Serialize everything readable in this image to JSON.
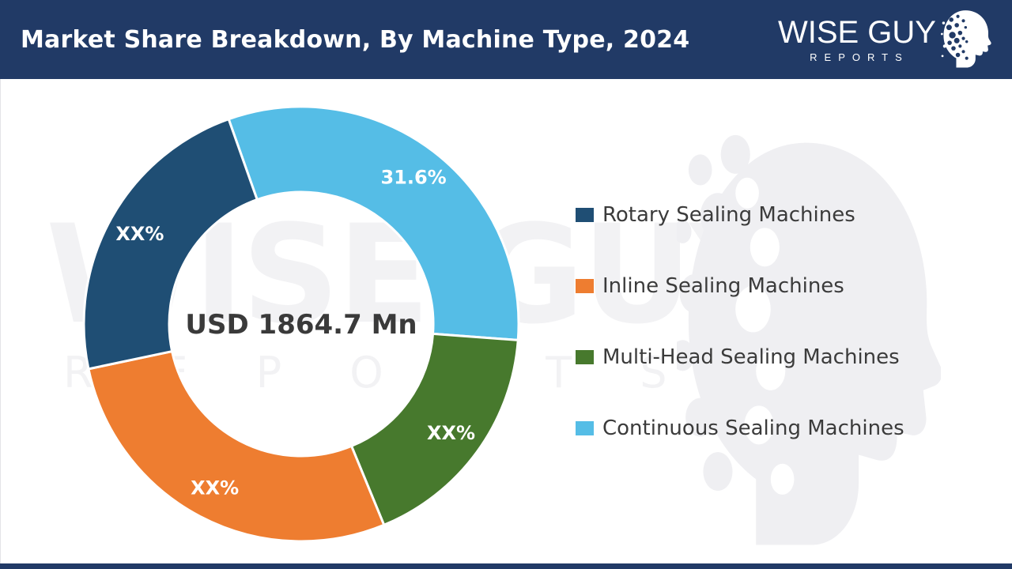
{
  "header": {
    "title": "Market Share Breakdown, By Machine Type, 2024",
    "logo": {
      "line1": "WISE GUY",
      "line2": "REPORTS"
    }
  },
  "watermark": {
    "line1": "WISE GUY",
    "line2": "REPORTS"
  },
  "chart_data": {
    "type": "pie",
    "subtype": "donut",
    "title": "Market Share Breakdown, By Machine Type, 2024",
    "center_label": "USD 1864.7 Mn",
    "start_angle_deg": -19.5,
    "direction": "clockwise",
    "legend_position": "right",
    "segments": [
      {
        "name": "Continuous Sealing Machines",
        "value_pct": 31.6,
        "label": "31.6%",
        "color": "#55BDE6"
      },
      {
        "name": "Multi-Head Sealing Machines",
        "value_pct": 17.6,
        "label": "XX%",
        "color": "#47792D"
      },
      {
        "name": "Inline Sealing Machines",
        "value_pct": 27.9,
        "label": "XX%",
        "color": "#EE7D30"
      },
      {
        "name": "Rotary Sealing Machines",
        "value_pct": 22.9,
        "label": "XX%",
        "color": "#1F4E74"
      }
    ],
    "legend": {
      "items": [
        {
          "label": "Rotary Sealing Machines",
          "color": "#1F4E74"
        },
        {
          "label": "Inline Sealing Machines",
          "color": "#EE7D30"
        },
        {
          "label": "Multi-Head Sealing Machines",
          "color": "#47792D"
        },
        {
          "label": "Continuous Sealing Machines",
          "color": "#55BDE6"
        }
      ]
    }
  },
  "colors": {
    "header_bg": "#213A66",
    "footer_bg": "#213A66",
    "watermark": "#F2F2F4",
    "center_text": "#3A3A3A",
    "segment_label": "#FFFFFF",
    "legend_text": "#3B3B3B"
  }
}
